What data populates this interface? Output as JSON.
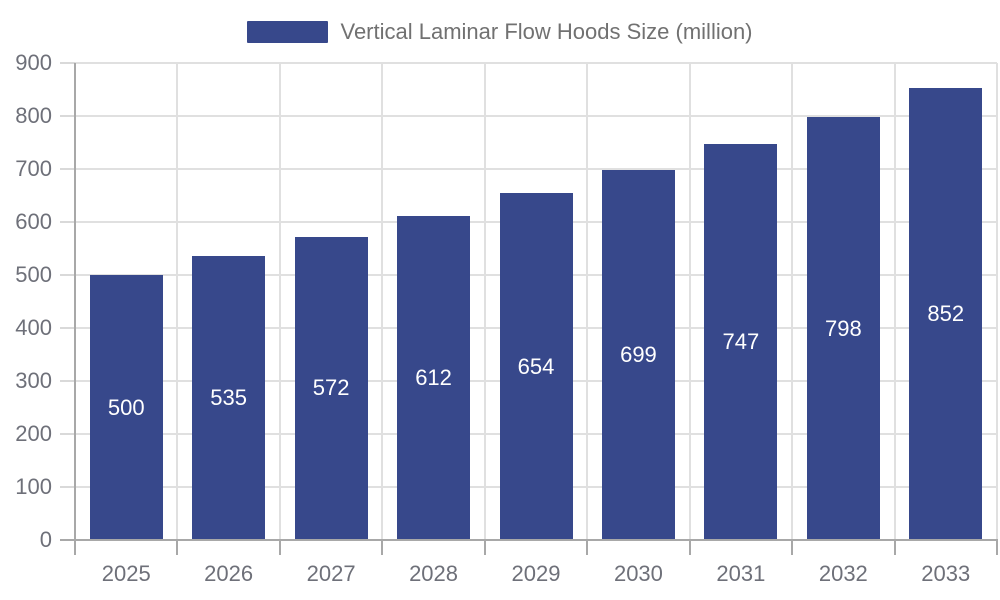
{
  "colors": {
    "bar": "#37488B",
    "axis_line": "#A8A8A8",
    "grid_line": "#E0E0E0",
    "y_tick": "#D9D9D9",
    "x_tick": "#A8A8A8",
    "axis_label": "#6E7079",
    "legend_label": "#717171",
    "value_label": "#FFFFFF",
    "background": "#FFFFFF"
  },
  "chart_data": {
    "type": "bar",
    "title": "",
    "legend": [
      "Vertical Laminar Flow Hoods Size (million)"
    ],
    "legend_position": "top",
    "categories": [
      "2025",
      "2026",
      "2027",
      "2028",
      "2029",
      "2030",
      "2031",
      "2032",
      "2033"
    ],
    "series": [
      {
        "name": "Vertical Laminar Flow Hoods Size (million)",
        "color": "#37488B",
        "values": [
          500,
          535,
          572,
          612,
          654,
          699,
          747,
          798,
          852
        ]
      }
    ],
    "xlabel": "",
    "ylabel": "",
    "ylim": [
      0,
      900
    ],
    "yticks": [
      0,
      100,
      200,
      300,
      400,
      500,
      600,
      700,
      800,
      900
    ],
    "grid": true,
    "value_labels": "inside-center"
  }
}
